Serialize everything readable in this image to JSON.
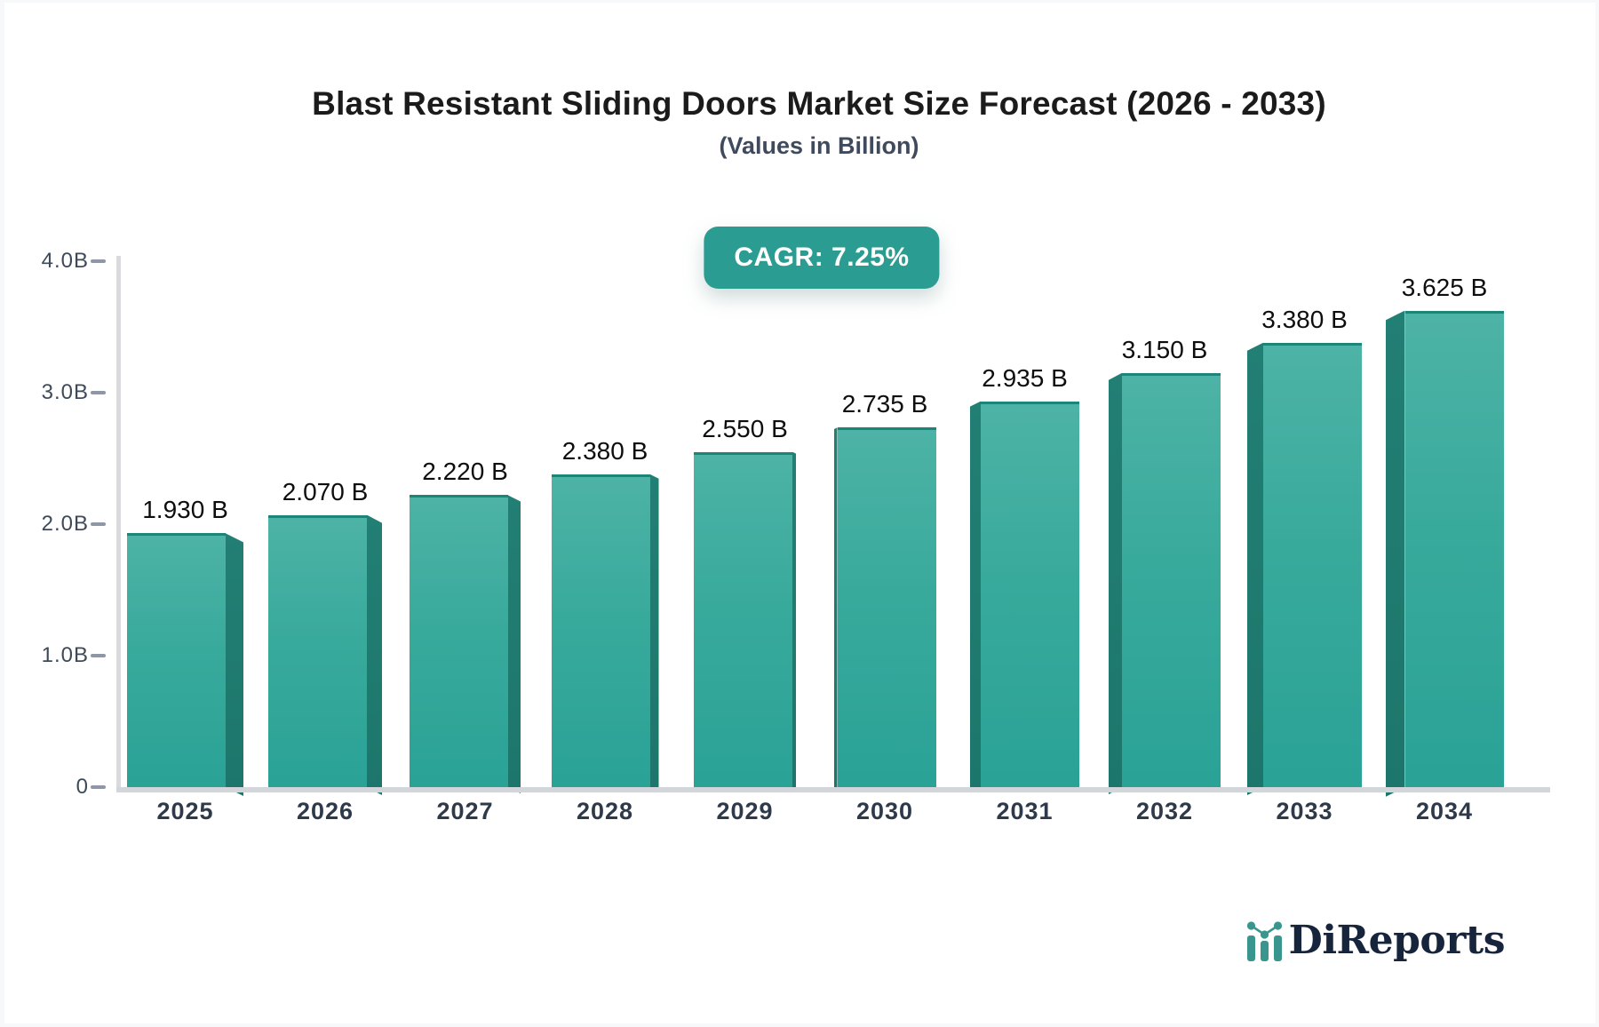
{
  "header": {
    "title": "Blast Resistant Sliding Doors Market Size Forecast (2026 - 2033)",
    "subtitle": "(Values in Billion)",
    "cagr_badge": "CAGR: 7.25%"
  },
  "chart_data": {
    "type": "bar",
    "title": "Blast Resistant Sliding Doors Market Size Forecast (2026 - 2033)",
    "subtitle": "(Values in Billion)",
    "unit": "Billion",
    "cagr": "7.25%",
    "categories": [
      "2025",
      "2026",
      "2027",
      "2028",
      "2029",
      "2030",
      "2031",
      "2032",
      "2033",
      "2034"
    ],
    "values": [
      1.93,
      2.07,
      2.22,
      2.38,
      2.55,
      2.735,
      2.935,
      3.15,
      3.38,
      3.625
    ],
    "bar_labels": [
      "1.930 B",
      "2.070 B",
      "2.220 B",
      "2.380 B",
      "2.550 B",
      "2.735 B",
      "2.935 B",
      "3.150 B",
      "3.380 B",
      "3.625 B"
    ],
    "xlabel": "",
    "ylabel": "",
    "ylim": [
      0,
      4.0
    ],
    "y_ticks": [
      {
        "label": "0",
        "value": 0.0
      },
      {
        "label": "1.0B",
        "value": 1.0
      },
      {
        "label": "2.0B",
        "value": 2.0
      },
      {
        "label": "3.0B",
        "value": 3.0
      },
      {
        "label": "4.0B",
        "value": 4.0
      }
    ],
    "grid": false,
    "legend": "none",
    "colors": {
      "bar_face_top": "#4db3a6",
      "bar_face_bottom": "#2aa296",
      "bar_top_edge": "#1b8579",
      "bar_side": "#1f7d72",
      "badge_bg": "#2a9c91",
      "badge_text": "#ffffff",
      "axis_line": "#d5d7dc",
      "tick_dash": "#8f97a6",
      "tick_text": "#3e4a5a",
      "value_text": "#0e0e0e"
    }
  },
  "logo": {
    "text": "DiReports",
    "icon": "mini-bar-chart-with-dots-icon",
    "icon_color": "#39968e",
    "text_color": "#16243c"
  }
}
